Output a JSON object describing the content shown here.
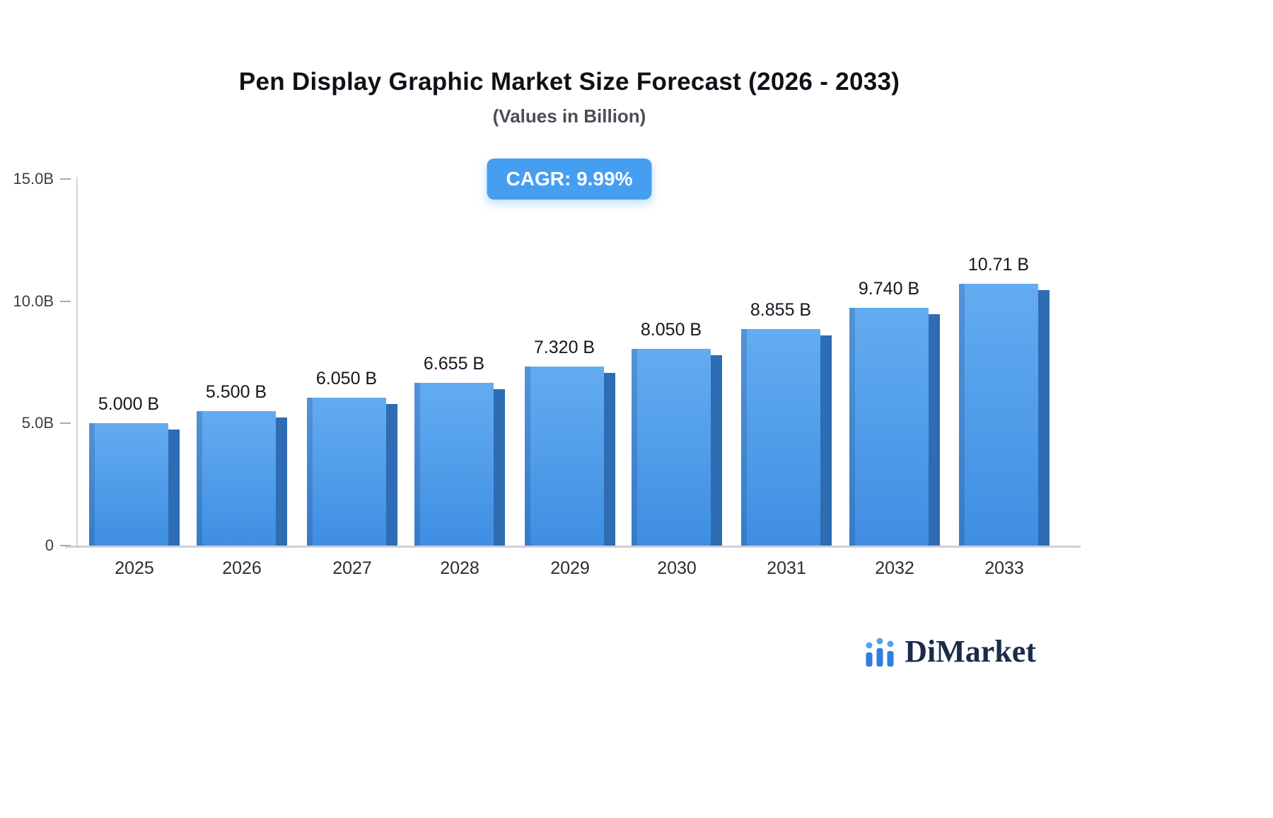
{
  "header": {
    "title": "Pen Display Graphic Market Size Forecast (2026 - 2033)",
    "subtitle": "(Values in Billion)",
    "badge": "CAGR: 9.99%"
  },
  "chart_data": {
    "type": "bar",
    "categories": [
      "2025",
      "2026",
      "2027",
      "2028",
      "2029",
      "2030",
      "2031",
      "2032",
      "2033"
    ],
    "values": [
      5.0,
      5.5,
      6.05,
      6.655,
      7.32,
      8.05,
      8.855,
      9.74,
      10.71
    ],
    "labels": [
      "5.000 B",
      "5.500 B",
      "6.050 B",
      "6.655 B",
      "7.320 B",
      "8.050 B",
      "8.855 B",
      "9.740 B",
      "10.71 B"
    ],
    "title": "Pen Display Graphic Market Size Forecast (2026 - 2033)",
    "subtitle": "(Values in Billion)",
    "xlabel": "",
    "ylabel": "",
    "ylim": [
      0,
      15
    ],
    "yticks": [
      {
        "label": "15.0B",
        "value": 15
      },
      {
        "label": "10.0B",
        "value": 10
      },
      {
        "label": "5.0B",
        "value": 5
      },
      {
        "label": "0",
        "value": 0
      }
    ],
    "grid": false,
    "legend": false,
    "annotation": "CAGR: 9.99%",
    "bar_color_top": "#63ACF1",
    "bar_color_bottom": "#3F8EE2",
    "bar_side_color": "#2E6CB4",
    "badge_color": "#469EF0"
  },
  "logo": {
    "text": "DiMarket",
    "icon": "bar-chart-icon",
    "icon_color": "#2F7DE0",
    "dot_color": "#4FA3F0"
  }
}
